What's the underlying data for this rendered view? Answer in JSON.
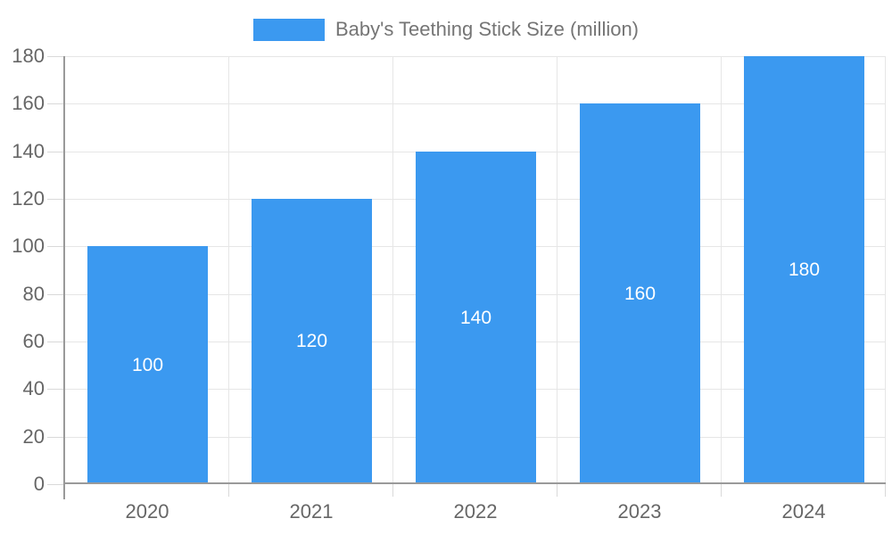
{
  "chart_data": {
    "type": "bar",
    "title": "Baby's Teething Stick Size (million)",
    "categories": [
      "2020",
      "2021",
      "2022",
      "2023",
      "2024"
    ],
    "values": [
      100,
      120,
      140,
      160,
      180
    ],
    "yticks": [
      0,
      20,
      40,
      60,
      80,
      100,
      120,
      140,
      160,
      180
    ],
    "ylim": [
      0,
      180
    ],
    "xlabel": "",
    "ylabel": "",
    "grid": true,
    "legend_position": "top",
    "bar_color": "#3b99f0",
    "bar_label_color": "#ffffff"
  }
}
